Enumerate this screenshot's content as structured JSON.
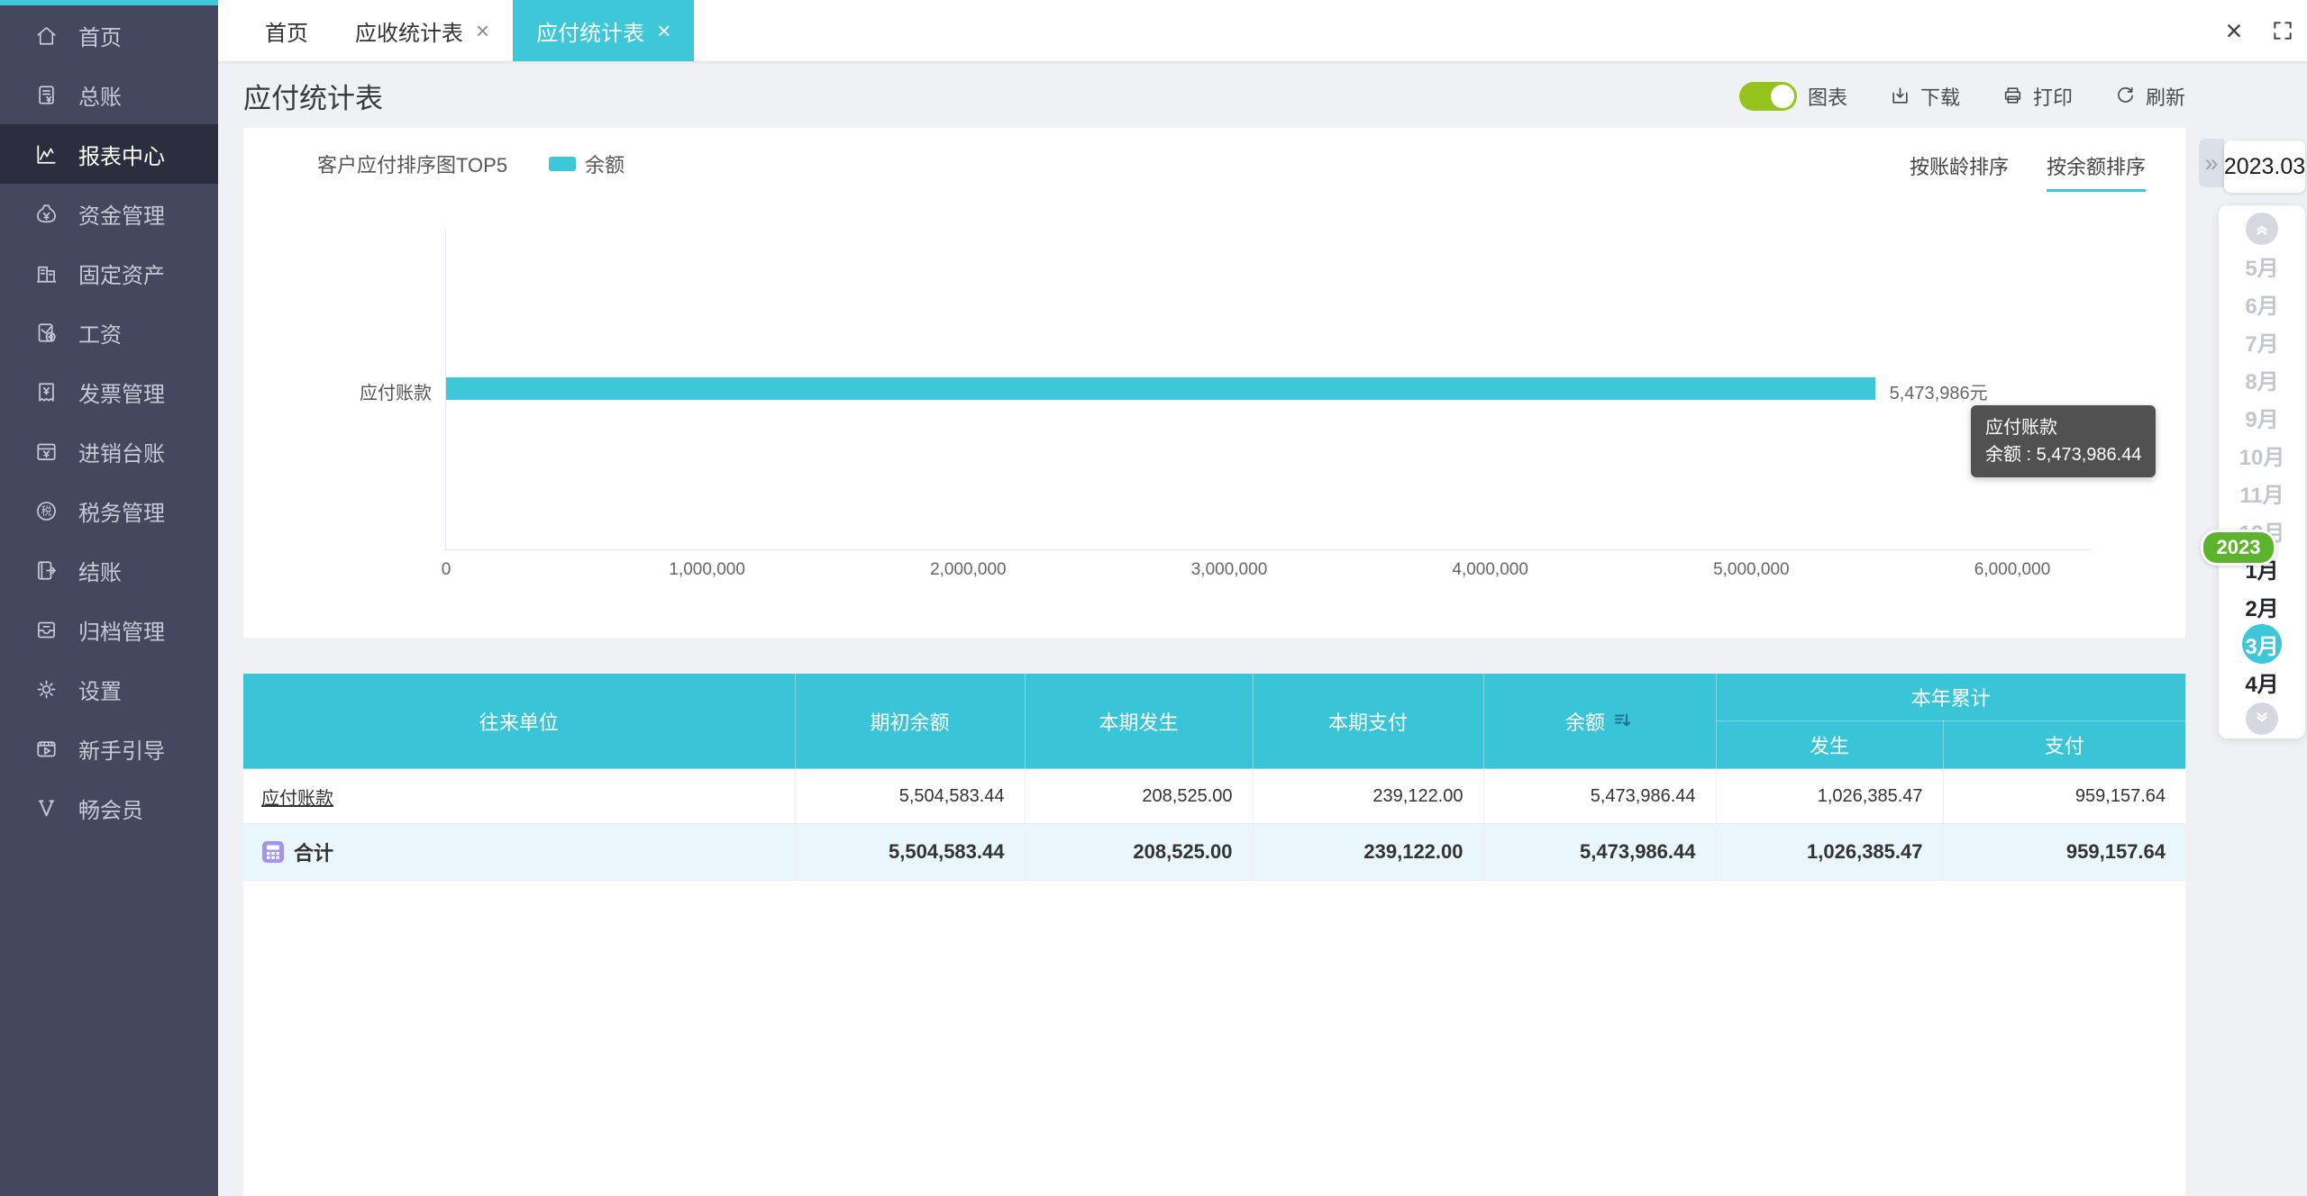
{
  "sidebar": {
    "items": [
      {
        "label": "首页",
        "icon": "home-icon",
        "active": false
      },
      {
        "label": "总账",
        "icon": "general-ledger-icon",
        "active": false
      },
      {
        "label": "报表中心",
        "icon": "report-center-icon",
        "active": true
      },
      {
        "label": "资金管理",
        "icon": "funds-icon",
        "active": false
      },
      {
        "label": "固定资产",
        "icon": "fixed-assets-icon",
        "active": false
      },
      {
        "label": "工资",
        "icon": "payroll-icon",
        "active": false
      },
      {
        "label": "发票管理",
        "icon": "invoice-icon",
        "active": false
      },
      {
        "label": "进销台账",
        "icon": "purchase-sales-icon",
        "active": false
      },
      {
        "label": "税务管理",
        "icon": "tax-icon",
        "active": false
      },
      {
        "label": "结账",
        "icon": "closing-icon",
        "active": false
      },
      {
        "label": "归档管理",
        "icon": "archive-icon",
        "active": false
      },
      {
        "label": "设置",
        "icon": "settings-icon",
        "active": false
      },
      {
        "label": "新手引导",
        "icon": "beginner-guide-icon",
        "active": false
      },
      {
        "label": "畅会员",
        "icon": "vip-icon",
        "active": false
      }
    ]
  },
  "tabs": [
    {
      "label": "首页",
      "closable": false,
      "active": false
    },
    {
      "label": "应收统计表",
      "closable": true,
      "active": false
    },
    {
      "label": "应付统计表",
      "closable": true,
      "active": true
    }
  ],
  "page": {
    "title": "应付统计表"
  },
  "toolbar": {
    "chart_toggle_label": "图表",
    "download_label": "下载",
    "print_label": "打印",
    "refresh_label": "刷新",
    "toggle_on_color": "#96c31e"
  },
  "chart": {
    "sort_by_aging": "按账龄排序",
    "sort_by_balance": "按余额排序",
    "legend_label": "余额"
  },
  "chart_data": {
    "type": "bar",
    "orientation": "horizontal",
    "title": "客户应付排序图TOP5",
    "legend": [
      "余额"
    ],
    "categories": [
      "应付账款"
    ],
    "values": [
      5473986.44
    ],
    "value_labels": [
      "5,473,986元"
    ],
    "xlim": [
      0,
      6000000
    ],
    "x_ticks": [
      "0",
      "1,000,000",
      "2,000,000",
      "3,000,000",
      "4,000,000",
      "5,000,000",
      "6,000,000"
    ],
    "bar_color": "#3ec7d9",
    "grid": false,
    "tooltip": {
      "title": "应付账款",
      "text": "余额 : 5,473,986.44"
    }
  },
  "table": {
    "headers": {
      "unit": "往来单位",
      "opening": "期初余额",
      "current_incurred": "本期发生",
      "current_paid": "本期支付",
      "balance": "余额",
      "ytd_group": "本年累计",
      "ytd_incurred": "发生",
      "ytd_paid": "支付"
    },
    "rows": [
      {
        "name": "应付账款",
        "opening": "5,504,583.44",
        "current_incurred": "208,525.00",
        "current_paid": "239,122.00",
        "balance": "5,473,986.44",
        "ytd_incurred": "1,026,385.47",
        "ytd_paid": "959,157.64"
      }
    ],
    "total": {
      "name": "合计",
      "opening": "5,504,583.44",
      "current_incurred": "208,525.00",
      "current_paid": "239,122.00",
      "balance": "5,473,986.44",
      "ytd_incurred": "1,026,385.47",
      "ytd_paid": "959,157.64"
    }
  },
  "month_panel": {
    "period": "2023.03",
    "collapse_icon": "»",
    "year_badge": "2023",
    "months": [
      {
        "label": "5月",
        "state": "muted"
      },
      {
        "label": "6月",
        "state": "muted"
      },
      {
        "label": "7月",
        "state": "muted"
      },
      {
        "label": "8月",
        "state": "muted"
      },
      {
        "label": "9月",
        "state": "muted"
      },
      {
        "label": "10月",
        "state": "muted"
      },
      {
        "label": "11月",
        "state": "muted"
      },
      {
        "label": "12月",
        "state": "muted"
      },
      {
        "label": "1月",
        "state": "normal"
      },
      {
        "label": "2月",
        "state": "normal"
      },
      {
        "label": "3月",
        "state": "selected"
      },
      {
        "label": "4月",
        "state": "normal"
      }
    ]
  },
  "window": {
    "close_label": "×"
  },
  "colors": {
    "accent": "#3ec7d9",
    "sidebar_bg": "#45475f",
    "sidebar_active_bg": "#2c2e40",
    "toggle_green": "#96c31e",
    "year_badge_green": "#5cb42c",
    "tooltip_bg": "#4c4c4c",
    "total_row_bg": "#e9f6fb"
  }
}
